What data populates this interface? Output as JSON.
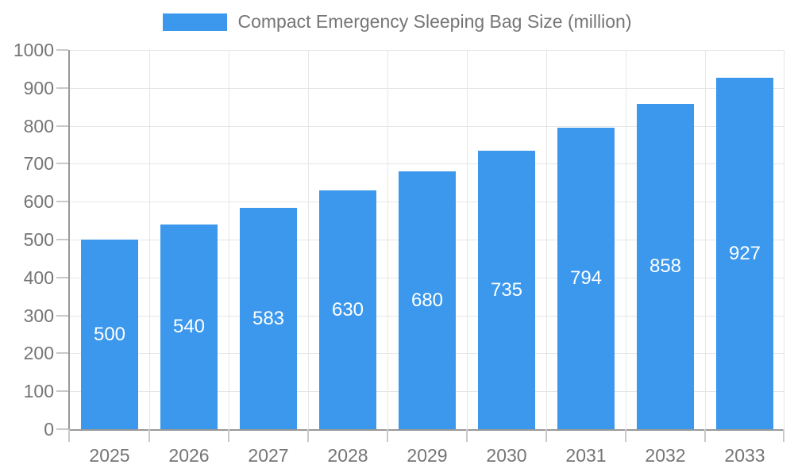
{
  "chart_data": {
    "type": "bar",
    "title": "Compact Emergency Sleeping Bag Size (million)",
    "categories": [
      "2025",
      "2026",
      "2027",
      "2028",
      "2029",
      "2030",
      "2031",
      "2032",
      "2033"
    ],
    "values": [
      500,
      540,
      583,
      630,
      680,
      735,
      794,
      858,
      927
    ],
    "xlabel": "",
    "ylabel": "",
    "ylim": [
      0,
      1000
    ],
    "y_tick_step": 100,
    "y_tick_labels": [
      "0",
      "100",
      "200",
      "300",
      "400",
      "500",
      "600",
      "700",
      "800",
      "900",
      "1000"
    ],
    "grid": true,
    "legend_position": "top",
    "bar_value_labels_visible": true,
    "colors": {
      "bar": "#3B98EC",
      "bar_value_text": "#FFFFFF",
      "axis_text": "#757575",
      "grid_line": "#E6E6E6",
      "tick_line": "#C9C9C9",
      "axis_line": "#999999",
      "background": "#FFFFFF"
    }
  }
}
